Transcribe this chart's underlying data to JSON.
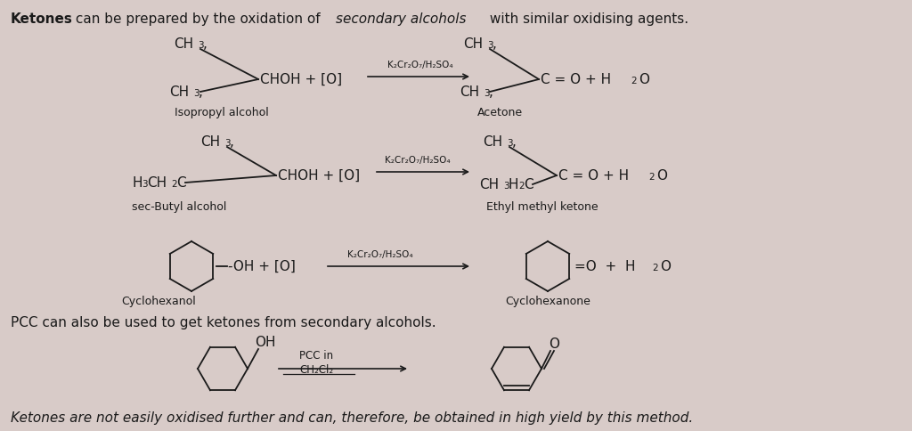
{
  "background_color": "#d8cbc8",
  "text_color": "#1a1a1a",
  "reagent": "K₂Cr₂O₇/H₂SO₄",
  "label_isopropyl": "Isopropyl alcohol",
  "label_acetone": "Acetone",
  "label_secbutyl": "sec-Butyl alcohol",
  "label_ethylmethyl": "Ethyl methyl ketone",
  "label_cyclohexanol": "Cyclohexanol",
  "label_cyclohexanone": "Cyclohexanone",
  "pcc_reagent_line1": "PCC in",
  "pcc_reagent_line2": "CH₂Cl₂",
  "footer": "Ketones are not easily oxidised further and can, therefore, be obtained in high yield by this method."
}
